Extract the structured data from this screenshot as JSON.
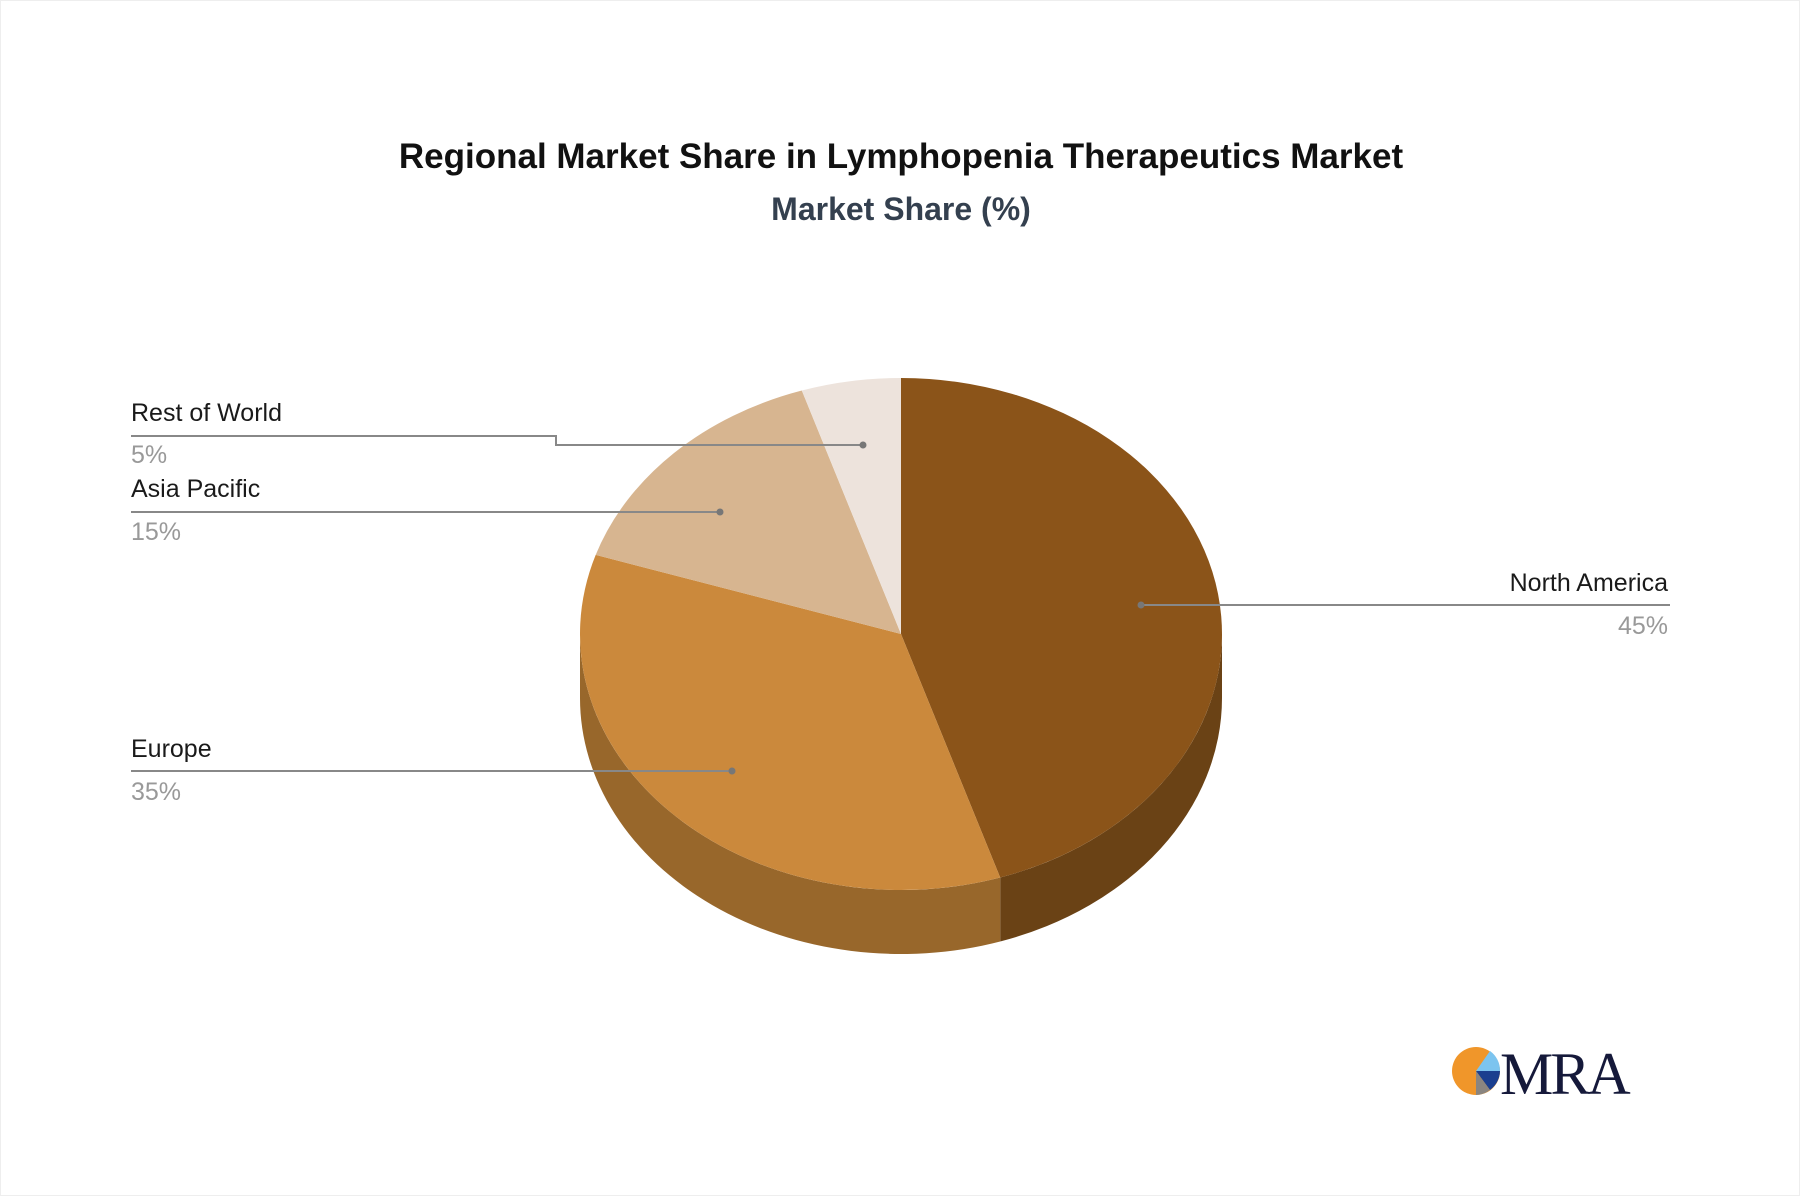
{
  "chart_data": {
    "type": "pie",
    "style": "3d",
    "title": "Regional Market Share in Lymphopenia Therapeutics Market",
    "subtitle": "Market Share (%)",
    "slices": [
      {
        "label": "North America",
        "value": 45,
        "value_label": "45%",
        "color": "#8b5419",
        "side_color": "#6a4215"
      },
      {
        "label": "Europe",
        "value": 35,
        "value_label": "35%",
        "color": "#cb893c",
        "side_color": "#98672b"
      },
      {
        "label": "Asia Pacific",
        "value": 15,
        "value_label": "15%",
        "color": "#d7b590",
        "side_color": "#a88a68"
      },
      {
        "label": "Rest of World",
        "value": 5,
        "value_label": "5%",
        "color": "#ede3dc",
        "side_color": "#c2b5ab"
      }
    ]
  },
  "logo": {
    "text": "MRA"
  }
}
